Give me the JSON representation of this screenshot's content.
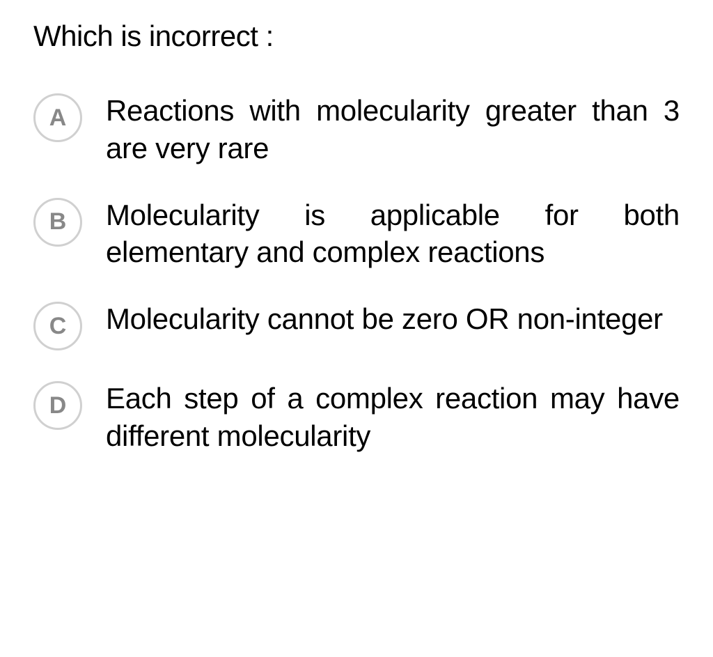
{
  "question": {
    "title": "Which is incorrect :"
  },
  "options": [
    {
      "letter": "A",
      "text": "Reactions with molecularity greater than 3 are very rare"
    },
    {
      "letter": "B",
      "text": "Molecularity is applicable for both elementary and complex reactions"
    },
    {
      "letter": "C",
      "text": "Molecularity cannot be zero OR non-integer"
    },
    {
      "letter": "D",
      "text": "Each step of a complex reaction may have different molecularity"
    }
  ],
  "styling": {
    "background_color": "#ffffff",
    "title_fontsize": 42,
    "title_color": "#000000",
    "option_text_fontsize": 42,
    "option_text_color": "#000000",
    "badge_border_color": "#d0d0d0",
    "badge_text_color": "#888888",
    "badge_fontsize": 34,
    "badge_size": 70
  }
}
